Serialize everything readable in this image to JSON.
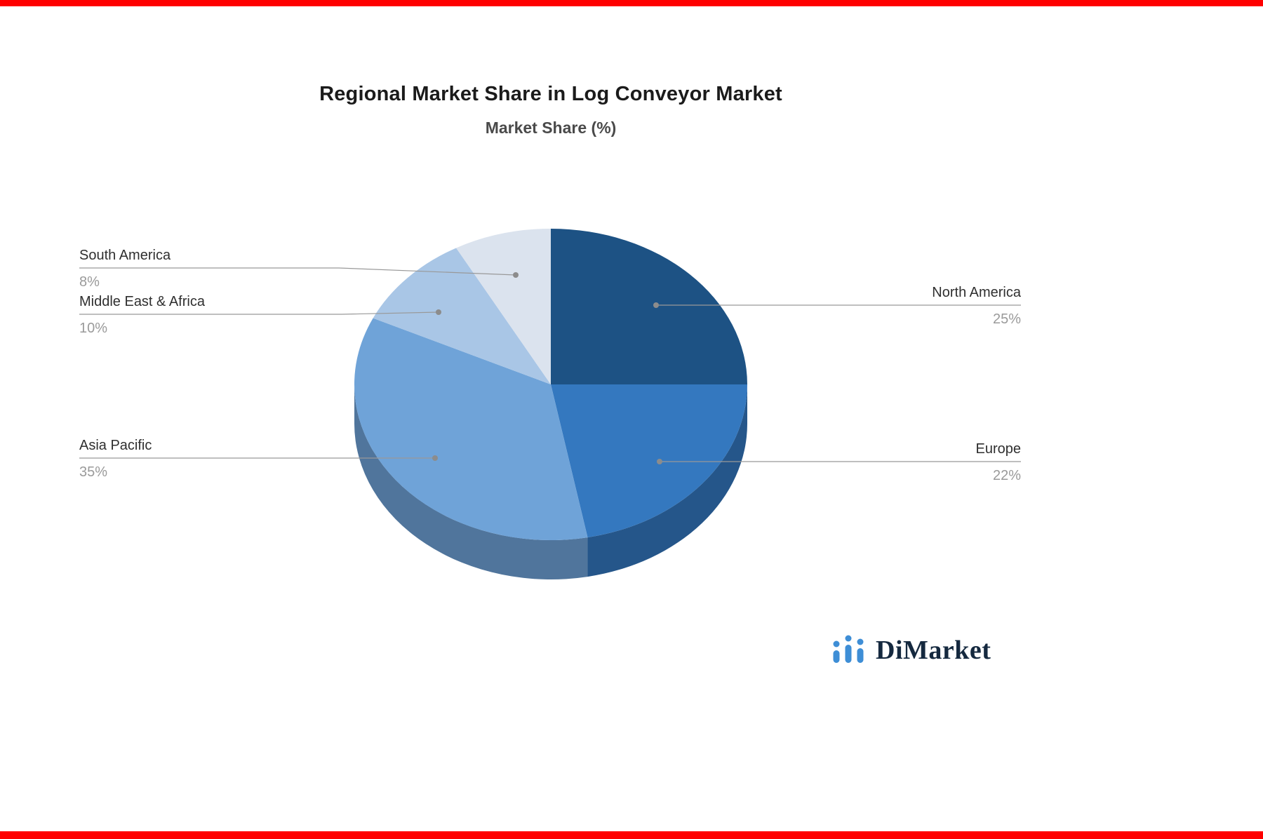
{
  "page": {
    "background": "#ffffff",
    "frame_color": "#ff0000"
  },
  "chart_data": {
    "type": "pie",
    "style": "3d",
    "title": "Regional Market Share in Log Conveyor Market",
    "subtitle": "Market Share (%)",
    "unit": "%",
    "labels": [
      "North America",
      "Europe",
      "Asia Pacific",
      "Middle East & Africa",
      "South America"
    ],
    "values": [
      25,
      22,
      35,
      10,
      8
    ],
    "display_values": [
      "25%",
      "22%",
      "35%",
      "10%",
      "8%"
    ],
    "colors": [
      "#1d5284",
      "#3478bf",
      "#6fa3d8",
      "#a9c6e6",
      "#dbe3ee"
    ],
    "legend_position": "none",
    "label_text_color": "#2f2f2f",
    "value_text_color": "#9a9a9a",
    "leader_line_color": "#999999"
  },
  "branding": {
    "logo_text": "DiMarket",
    "logo_icon": "bar-chart-dots-icon",
    "logo_text_color": "#15293f",
    "logo_icon_color": "#3e8ed6"
  }
}
